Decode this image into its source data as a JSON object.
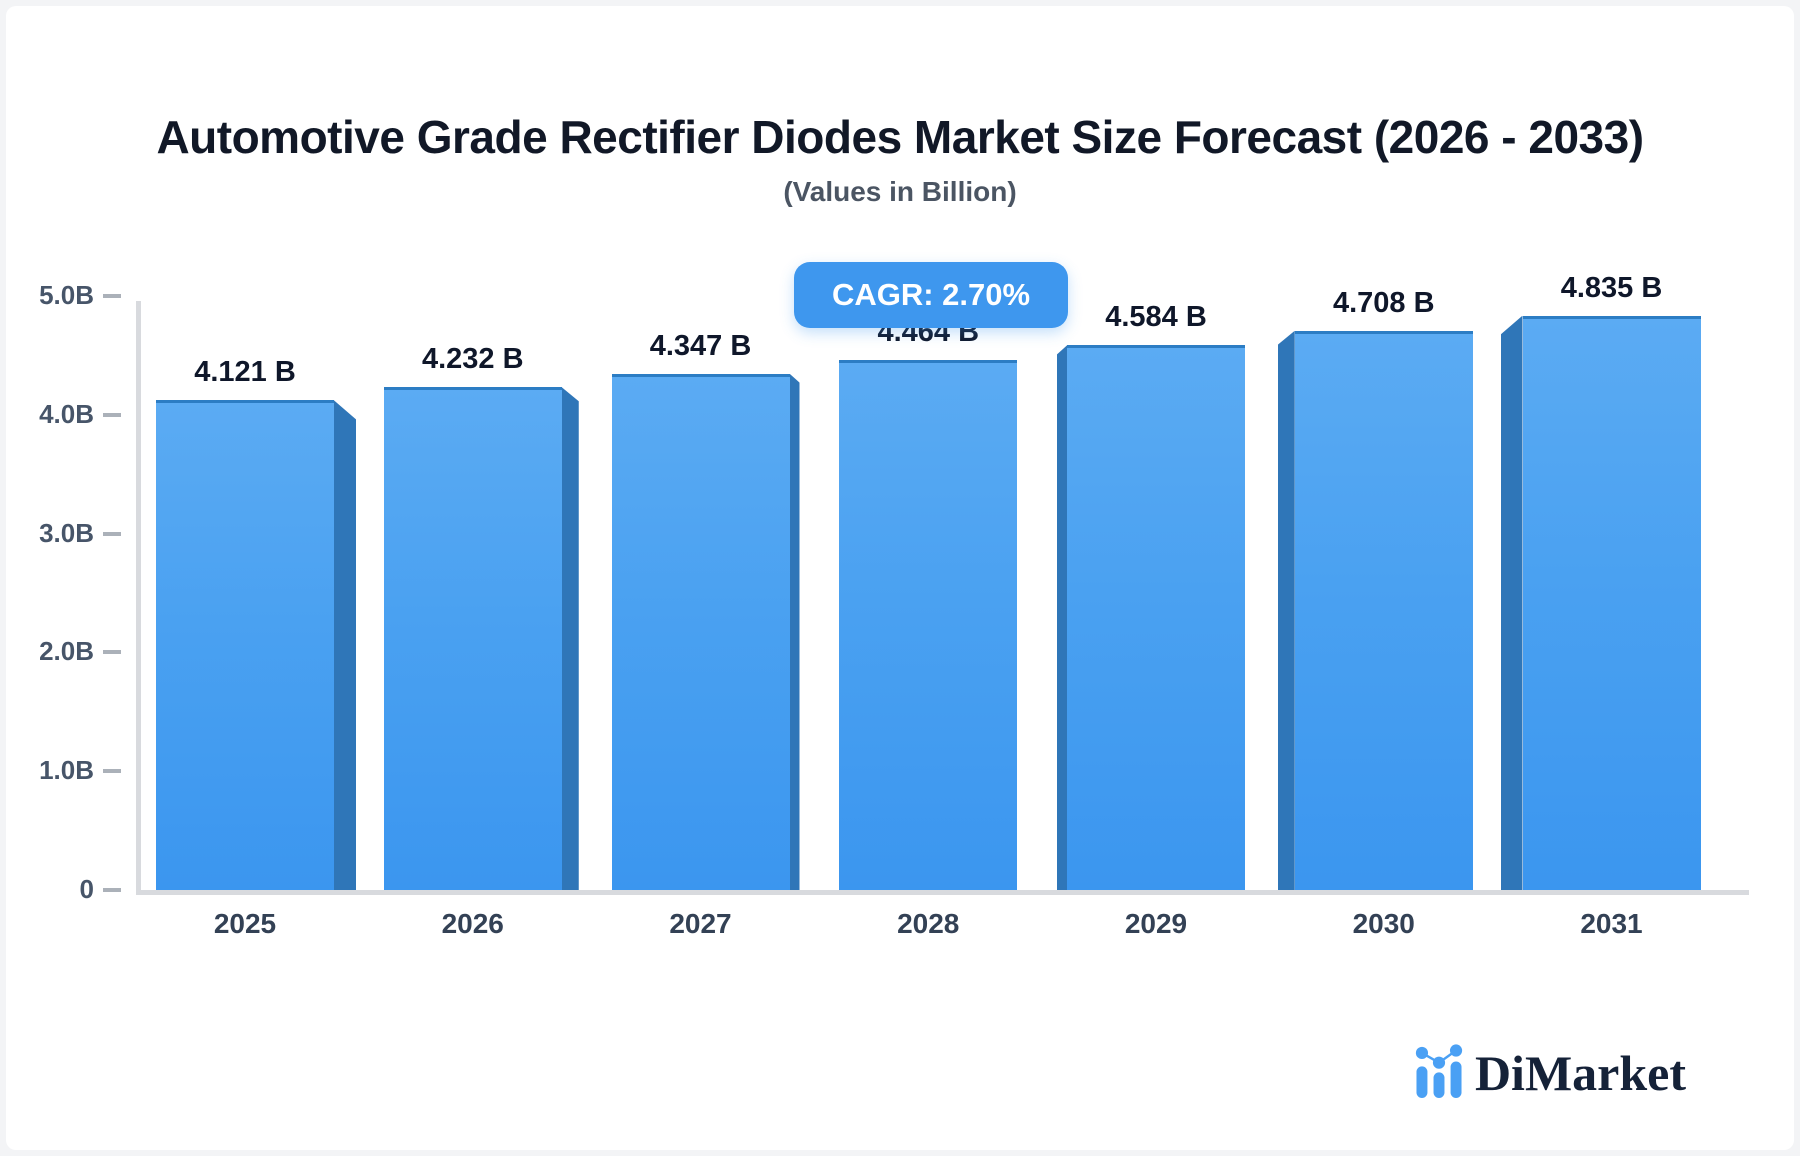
{
  "header": {
    "title": "Automotive Grade Rectifier Diodes Market Size Forecast (2026 - 2033)",
    "subtitle": "(Values in Billion)"
  },
  "badge": {
    "label": "CAGR: 2.70%",
    "color": "#3e97ee"
  },
  "chart_data": {
    "type": "bar",
    "categories": [
      "2025",
      "2026",
      "2027",
      "2028",
      "2029",
      "2030",
      "2031"
    ],
    "values": [
      4.121,
      4.232,
      4.347,
      4.464,
      4.584,
      4.708,
      4.835
    ],
    "value_labels": [
      "4.121 B",
      "4.232 B",
      "4.347 B",
      "4.464 B",
      "4.584 B",
      "4.708 B",
      "4.835 B"
    ],
    "y_ticks": [
      {
        "label": "5.0B",
        "value": 5
      },
      {
        "label": "4.0B",
        "value": 4
      },
      {
        "label": "3.0B",
        "value": 3
      },
      {
        "label": "2.0B",
        "value": 2
      },
      {
        "label": "1.0B",
        "value": 1
      },
      {
        "label": "0",
        "value": 0
      }
    ],
    "ylim": [
      0,
      5
    ],
    "grid": false,
    "legend": false,
    "bar_color_top": "#5babf3",
    "bar_color_bottom": "#3b96ef",
    "bar_side_color": "#2f76b8",
    "axis_color": "#d8dade"
  },
  "branding": {
    "logo_text": "DiMarket",
    "logo_icon": "mini-bar-chart-icon",
    "logo_color": "#4aa0f4",
    "logo_text_color": "#152238"
  }
}
